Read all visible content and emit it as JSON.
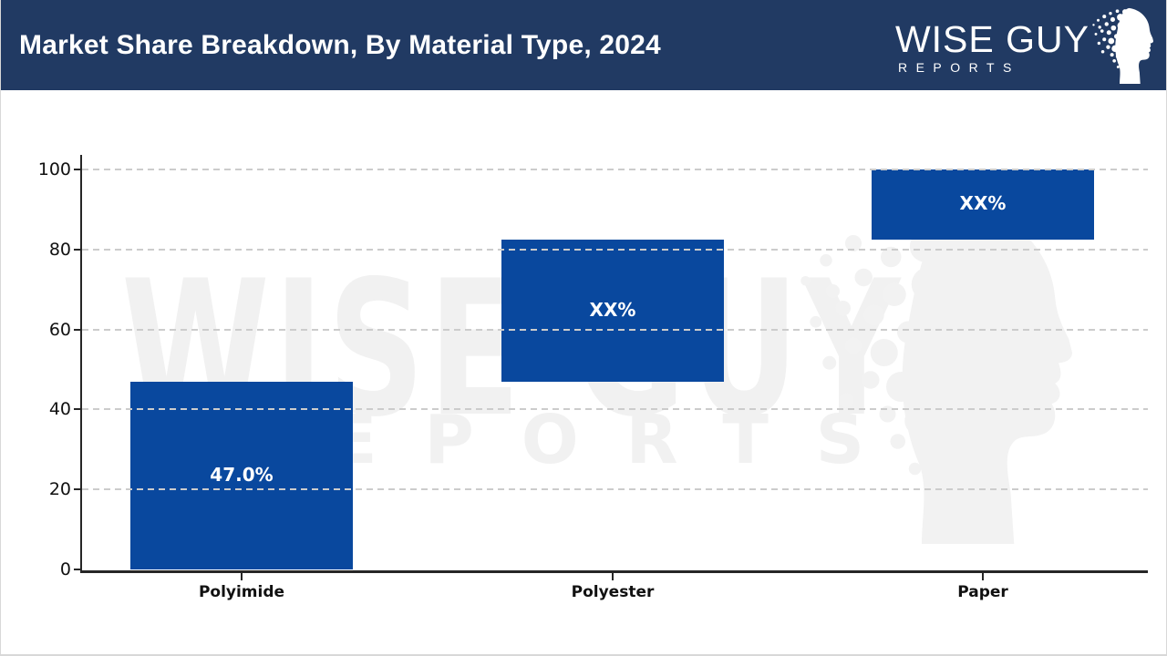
{
  "header": {
    "title": "Market Share Breakdown, By Material Type, 2024",
    "logo": {
      "line1": "WISE GUY",
      "line2": "REPORTS"
    }
  },
  "watermark": {
    "line1": "WISE GUY",
    "line2": "REPORTS"
  },
  "chart_data": {
    "type": "bar",
    "subtype": "waterfall-breakdown",
    "title": "Market Share Breakdown, By Material Type, 2024",
    "categories": [
      "Polyimide",
      "Polyester",
      "Paper"
    ],
    "segments": [
      {
        "category": "Polyimide",
        "start": 0,
        "end": 47,
        "label": "47.0%"
      },
      {
        "category": "Polyester",
        "start": 47,
        "end": 82.5,
        "label": "XX%"
      },
      {
        "category": "Paper",
        "start": 82.5,
        "end": 100,
        "label": "XX%"
      }
    ],
    "ylim": [
      0,
      100
    ],
    "yticks": [
      0,
      20,
      40,
      60,
      80,
      100
    ],
    "xlabel": "",
    "ylabel": "",
    "grid": "horizontal-dashed",
    "legend": "none"
  },
  "colors": {
    "header_bg": "#213a63",
    "bar": "#09489e",
    "axis": "#262626",
    "grid": "#cccccc",
    "watermark": "#f1f1f1",
    "title_text": "#ffffff",
    "bar_label_text": "#ffffff"
  }
}
